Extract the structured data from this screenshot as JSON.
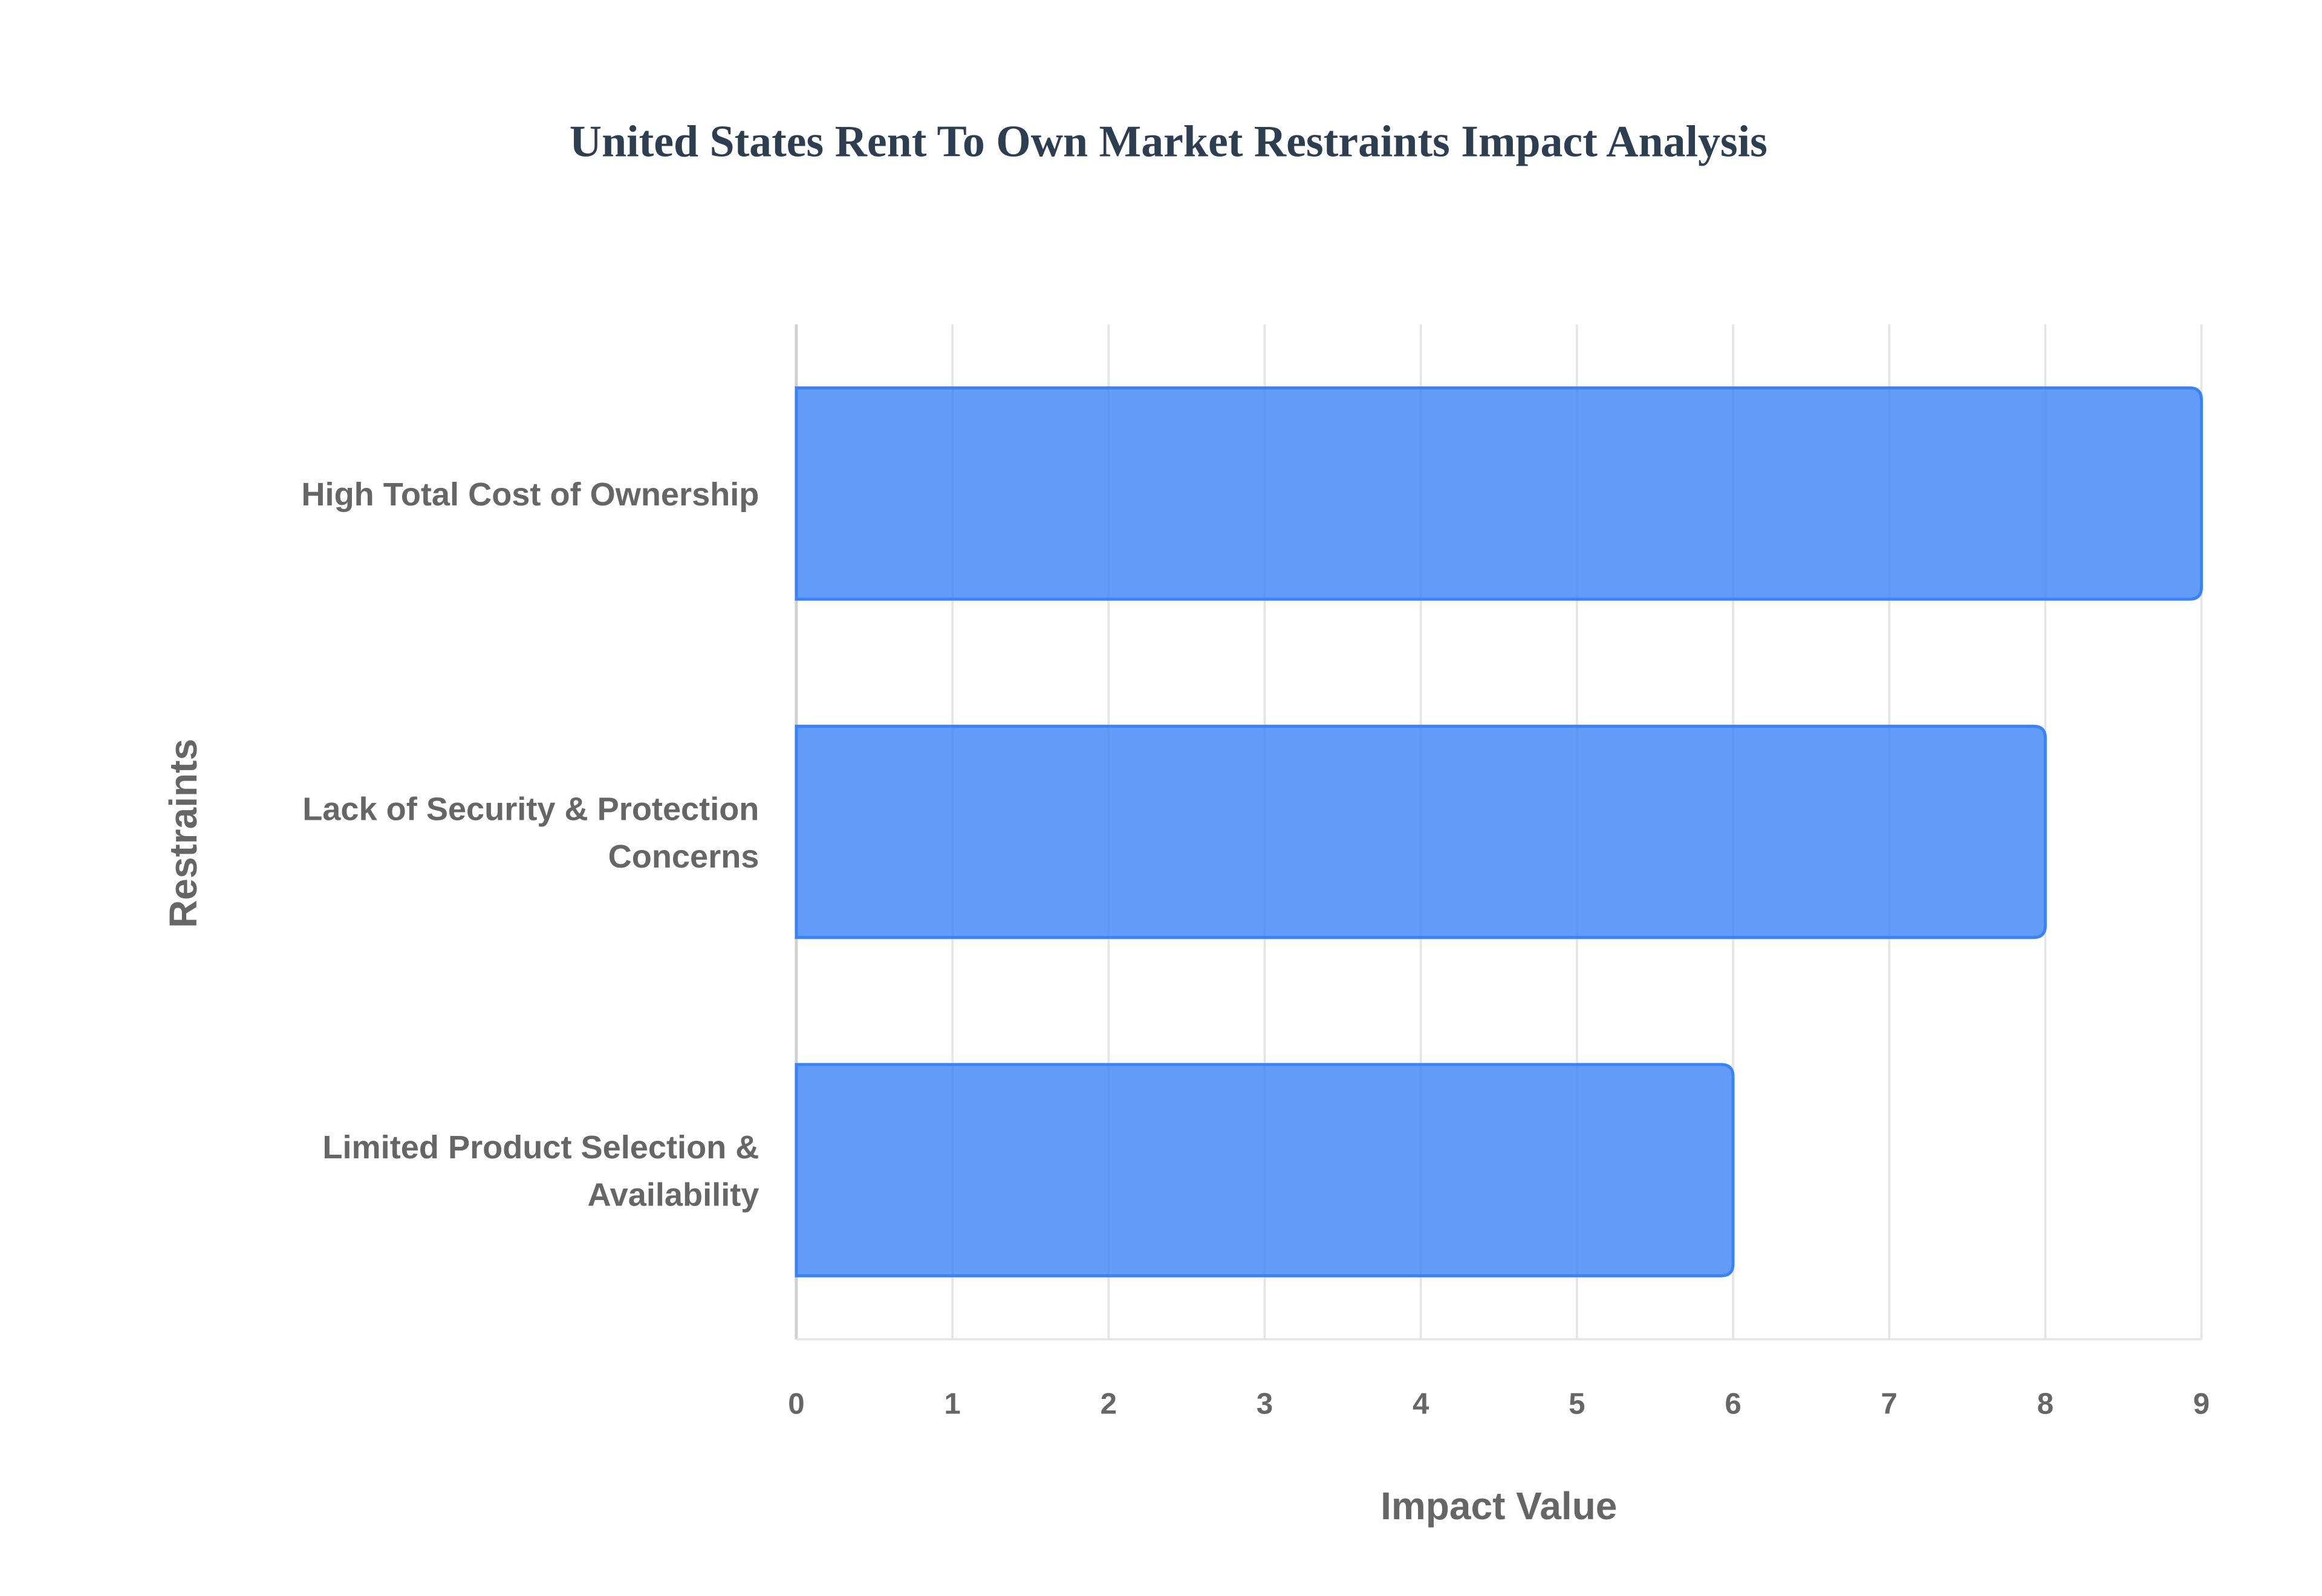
{
  "chart_data": {
    "type": "bar",
    "orientation": "horizontal",
    "title": "United States Rent To Own Market Restraints Impact Analysis",
    "xlabel": "Impact Value",
    "ylabel": "Restraints",
    "categories": [
      [
        "High Total Cost of Ownership"
      ],
      [
        "Lack of Security & Protection",
        "Concerns"
      ],
      [
        "Limited Product Selection &",
        "Availability"
      ]
    ],
    "values": [
      9,
      8,
      6
    ],
    "xlim": [
      0,
      9
    ],
    "xticks": [
      "0",
      "1",
      "2",
      "3",
      "4",
      "5",
      "6",
      "7",
      "8",
      "9"
    ],
    "grid": true,
    "legend": "none",
    "colors": {
      "bar_fill": "#3b82f6",
      "bar_fill_opacity": 0.8,
      "bar_stroke": "#3b82f6",
      "title": "#2c3e50",
      "text": "#666666",
      "grid": "#e5e5e5"
    }
  }
}
